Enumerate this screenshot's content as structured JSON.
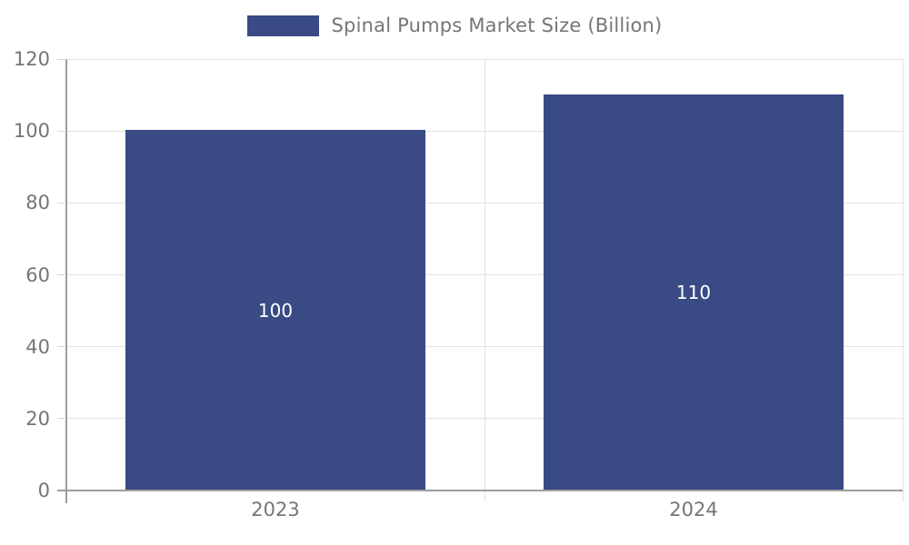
{
  "chart_data": {
    "type": "bar",
    "title": "Spinal Pumps Market Size (Billion)",
    "legend": {
      "label": "Spinal Pumps Market Size (Billion)",
      "position": "top"
    },
    "categories": [
      "2023",
      "2024"
    ],
    "series": [
      {
        "name": "Spinal Pumps Market Size (Billion)",
        "values": [
          100,
          110
        ]
      }
    ],
    "bar_value_labels": [
      "100",
      "110"
    ],
    "xlabel": "",
    "ylabel": "",
    "ylim": [
      0,
      120
    ],
    "yticks": [
      0,
      20,
      40,
      60,
      80,
      100,
      120
    ],
    "grid": "on",
    "colors": {
      "bar": "#394a84",
      "bar_label_text": "#ffffff",
      "axis_line": "#9e9e9e",
      "gridline": "#e2e2e2",
      "tick_text": "#757575",
      "legend_text": "#757575",
      "background": "#ffffff"
    }
  }
}
